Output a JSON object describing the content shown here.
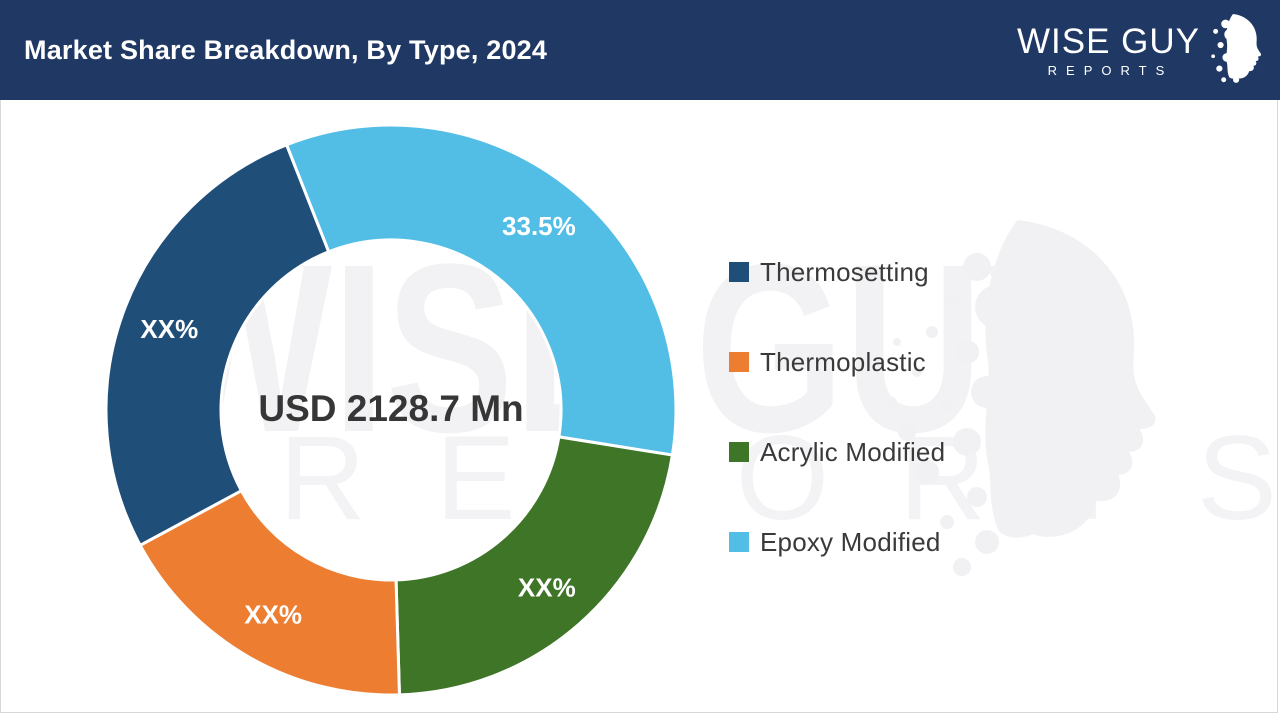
{
  "header": {
    "title": "Market Share Breakdown, By Type, 2024",
    "bg_color": "#1F3864",
    "brand": {
      "name": "WISE GUY",
      "subname": "REPORTS"
    }
  },
  "watermark": {
    "line1": "WISE GUY",
    "line2": "REPORTS"
  },
  "chart_data": {
    "type": "pie",
    "subtype": "donut",
    "title": "Market Share Breakdown, By Type, 2024",
    "center_label": "USD 2128.7 Mn",
    "start_angle_deg": -21.5,
    "direction": "clockwise",
    "inner_radius_ratio": 0.6,
    "legend_position": "right",
    "slices": [
      {
        "name": "Epoxy Modified",
        "value_pct": 33.5,
        "label": "33.5%",
        "color": "#52BEE6"
      },
      {
        "name": "Acrylic Modified",
        "value_pct": 22.0,
        "label": "XX%",
        "color": "#3F7527"
      },
      {
        "name": "Thermoplastic",
        "value_pct": 17.6,
        "label": "XX%",
        "color": "#ED7D31"
      },
      {
        "name": "Thermosetting",
        "value_pct": 26.9,
        "label": "XX%",
        "color": "#1F4E79"
      }
    ],
    "legend": [
      {
        "label": "Thermosetting",
        "color": "#1F4E79"
      },
      {
        "label": "Thermoplastic",
        "color": "#ED7D31"
      },
      {
        "label": "Acrylic Modified",
        "color": "#3F7527"
      },
      {
        "label": "Epoxy Modified",
        "color": "#52BEE6"
      }
    ]
  }
}
